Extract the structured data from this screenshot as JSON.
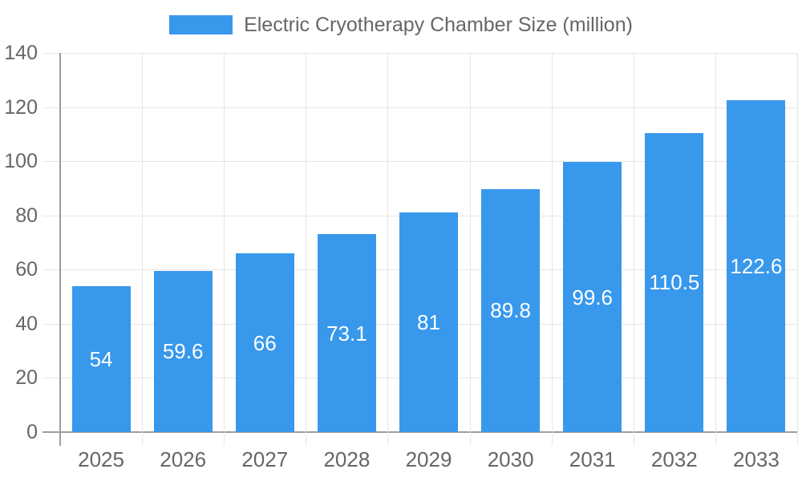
{
  "chart_data": {
    "type": "bar",
    "title": "Electric Cryotherapy Chamber Size (million)",
    "categories": [
      "2025",
      "2026",
      "2027",
      "2028",
      "2029",
      "2030",
      "2031",
      "2032",
      "2033"
    ],
    "series": [
      {
        "name": "Electric Cryotherapy Chamber Size (million)",
        "values": [
          54,
          59.6,
          66,
          73.1,
          81,
          89.8,
          99.6,
          110.5,
          122.6
        ]
      }
    ],
    "value_labels": [
      "54",
      "59.6",
      "66",
      "73.1",
      "81",
      "89.8",
      "99.6",
      "110.5",
      "122.6"
    ],
    "ytick_labels": [
      "0",
      "20",
      "40",
      "60",
      "80",
      "100",
      "120",
      "140"
    ],
    "xlabel": "",
    "ylabel": "",
    "ylim": [
      0,
      140
    ],
    "ytick_step": 20,
    "grid": true,
    "legend_position": "top",
    "colors": {
      "bar": "#3898EC",
      "grid": "#E6E6E6",
      "axis": "#9E9E9E",
      "text": "#666666",
      "value_label": "#FFFFFF",
      "background": "#FFFFFF"
    }
  }
}
